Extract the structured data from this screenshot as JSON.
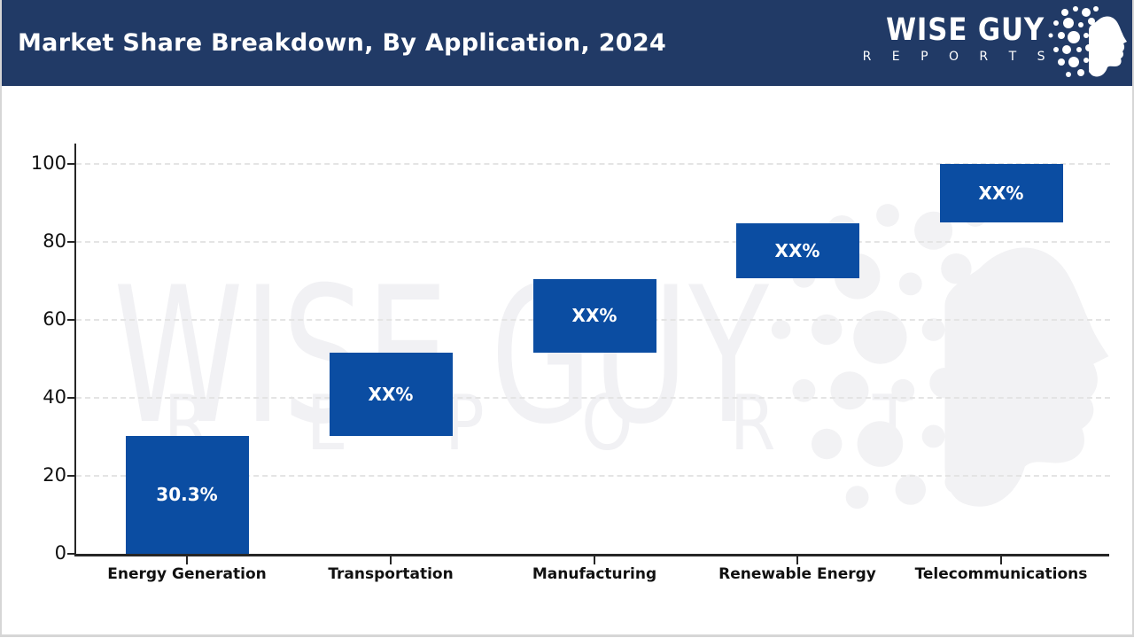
{
  "header": {
    "title": "Market Share Breakdown, By Application, 2024",
    "bg_color": "#213a66",
    "logo": {
      "line1": "WISE GUY",
      "line2": "R E P O R T S"
    }
  },
  "watermark": {
    "line1": "WISE GUY",
    "line2": "R E P O R T S"
  },
  "chart_data": {
    "type": "bar",
    "subtype": "waterfall",
    "title": "Market Share Breakdown, By Application, 2024",
    "xlabel": "",
    "ylabel": "",
    "ylim": [
      0,
      105
    ],
    "yticks": [
      0,
      20,
      40,
      60,
      80,
      100
    ],
    "grid": "horizontal-dashed",
    "legend": "none",
    "bar_color": "#0b4da2",
    "categories": [
      "Energy Generation",
      "Transportation",
      "Manufacturing",
      "Renewable Energy",
      "Telecommunications"
    ],
    "segments": [
      {
        "category": "Energy Generation",
        "start": 0,
        "end": 30.3,
        "label": "30.3%"
      },
      {
        "category": "Transportation",
        "start": 30.3,
        "end": 51.6,
        "label": "XX%"
      },
      {
        "category": "Manufacturing",
        "start": 51.6,
        "end": 70.5,
        "label": "XX%"
      },
      {
        "category": "Renewable Energy",
        "start": 70.6,
        "end": 84.8,
        "label": "XX%"
      },
      {
        "category": "Telecommunications",
        "start": 84.9,
        "end": 100,
        "label": "XX%"
      }
    ]
  }
}
